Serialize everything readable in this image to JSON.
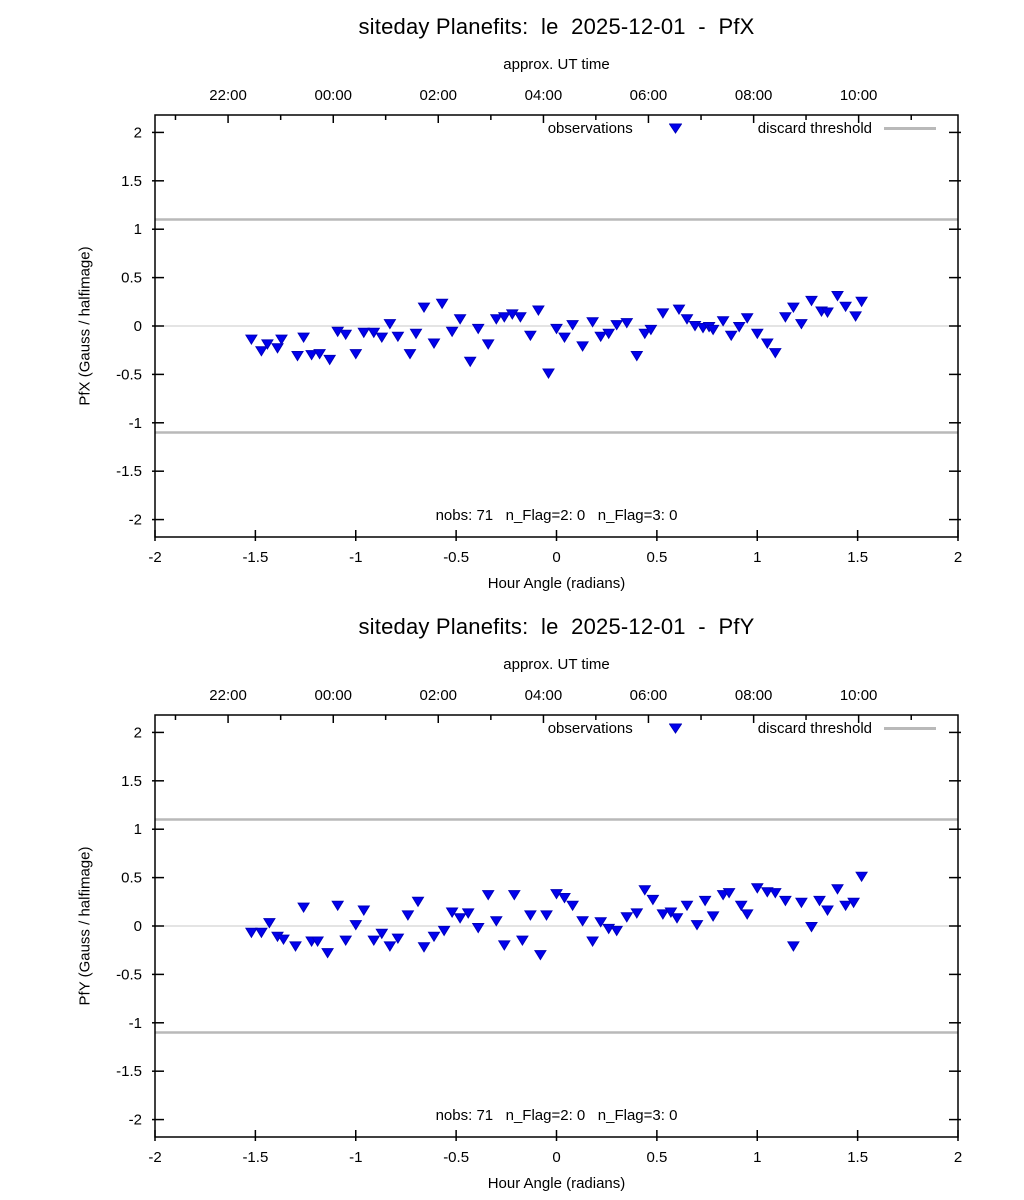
{
  "colors": {
    "background": "#ffffff",
    "text": "#000000",
    "axis": "#000000",
    "observation_marker": "#0000ee",
    "observation_marker_edge": "#0000bb",
    "threshold_line": "#b9b9b9",
    "zero_line": "#c8c8c8"
  },
  "chart_data": [
    {
      "type": "scatter",
      "title": "siteday Planefits:  le  2025-12-01  -  PfX",
      "x2label": "approx. UT time",
      "xlabel": "Hour Angle (radians)",
      "ylabel": "PfX (Gauss / halfimage)",
      "xlim": [
        -2,
        2
      ],
      "ylim": [
        -2.18,
        2.18
      ],
      "grid": false,
      "legend_position": "top-right-horizontal",
      "x_ticks": {
        "values": [
          -2,
          -1.5,
          -1,
          -0.5,
          0,
          0.5,
          1,
          1.5,
          2
        ],
        "labels": [
          "-2",
          "-1.5",
          "-1",
          "-0.5",
          "0",
          "0.5",
          "1",
          "1.5",
          "2"
        ]
      },
      "y_ticks": {
        "values": [
          2,
          1.5,
          1,
          0.5,
          0,
          -0.5,
          -1,
          -1.5,
          -2
        ],
        "labels": [
          "2",
          "1.5",
          "1",
          "0.5",
          "0",
          "-0.5",
          "-1",
          "-1.5",
          "-2"
        ]
      },
      "top_axis": {
        "labels": [
          "22:00",
          "00:00",
          "02:00",
          "04:00",
          "06:00",
          "08:00",
          "10:00"
        ],
        "label_positions_rad": [
          -1.636,
          -1.112,
          -0.589,
          -0.065,
          0.458,
          0.982,
          1.505
        ],
        "minor_positions_rad": [
          -1.898,
          -1.374,
          -0.851,
          -0.327,
          0.196,
          0.72,
          1.243,
          1.767
        ]
      },
      "threshold": 1.1,
      "zero_line": 0,
      "annotation": "nobs: 71   n_Flag=2: 0   n_Flag=3: 0",
      "stats": {
        "nobs": 71,
        "n_flag_2": 0,
        "n_flag_3": 0
      },
      "legend": [
        {
          "label": "observations",
          "marker": "triangle-down"
        },
        {
          "label": "discard threshold",
          "marker": "line"
        }
      ],
      "series": [
        {
          "name": "observations",
          "points": [
            [
              -1.52,
              -0.13
            ],
            [
              -1.47,
              -0.25
            ],
            [
              -1.44,
              -0.18
            ],
            [
              -1.39,
              -0.22
            ],
            [
              -1.37,
              -0.13
            ],
            [
              -1.29,
              -0.3
            ],
            [
              -1.26,
              -0.11
            ],
            [
              -1.22,
              -0.29
            ],
            [
              -1.18,
              -0.28
            ],
            [
              -1.13,
              -0.34
            ],
            [
              -1.09,
              -0.05
            ],
            [
              -1.05,
              -0.08
            ],
            [
              -1.0,
              -0.28
            ],
            [
              -0.96,
              -0.06
            ],
            [
              -0.91,
              -0.06
            ],
            [
              -0.87,
              -0.11
            ],
            [
              -0.83,
              0.03
            ],
            [
              -0.79,
              -0.1
            ],
            [
              -0.73,
              -0.28
            ],
            [
              -0.7,
              -0.07
            ],
            [
              -0.66,
              0.2
            ],
            [
              -0.61,
              -0.17
            ],
            [
              -0.57,
              0.24
            ],
            [
              -0.52,
              -0.05
            ],
            [
              -0.48,
              0.08
            ],
            [
              -0.43,
              -0.36
            ],
            [
              -0.39,
              -0.02
            ],
            [
              -0.34,
              -0.18
            ],
            [
              -0.3,
              0.08
            ],
            [
              -0.26,
              0.1
            ],
            [
              -0.22,
              0.13
            ],
            [
              -0.18,
              0.1
            ],
            [
              -0.13,
              -0.09
            ],
            [
              -0.09,
              0.17
            ],
            [
              -0.04,
              -0.48
            ],
            [
              0.0,
              -0.02
            ],
            [
              0.04,
              -0.11
            ],
            [
              0.08,
              0.02
            ],
            [
              0.13,
              -0.2
            ],
            [
              0.18,
              0.05
            ],
            [
              0.22,
              -0.1
            ],
            [
              0.26,
              -0.07
            ],
            [
              0.3,
              0.02
            ],
            [
              0.35,
              0.04
            ],
            [
              0.4,
              -0.3
            ],
            [
              0.44,
              -0.07
            ],
            [
              0.47,
              -0.03
            ],
            [
              0.53,
              0.14
            ],
            [
              0.61,
              0.18
            ],
            [
              0.65,
              0.08
            ],
            [
              0.69,
              0.01
            ],
            [
              0.73,
              -0.01
            ],
            [
              0.76,
              0.0
            ],
            [
              0.78,
              -0.03
            ],
            [
              0.83,
              0.06
            ],
            [
              0.87,
              -0.09
            ],
            [
              0.91,
              0.0
            ],
            [
              0.95,
              0.09
            ],
            [
              1.0,
              -0.07
            ],
            [
              1.05,
              -0.17
            ],
            [
              1.09,
              -0.27
            ],
            [
              1.14,
              0.1
            ],
            [
              1.18,
              0.2
            ],
            [
              1.22,
              0.03
            ],
            [
              1.27,
              0.27
            ],
            [
              1.32,
              0.16
            ],
            [
              1.35,
              0.15
            ],
            [
              1.4,
              0.32
            ],
            [
              1.44,
              0.21
            ],
            [
              1.49,
              0.11
            ],
            [
              1.52,
              0.26
            ]
          ]
        }
      ]
    },
    {
      "type": "scatter",
      "title": "siteday Planefits:  le  2025-12-01  -  PfY",
      "x2label": "approx. UT time",
      "xlabel": "Hour Angle (radians)",
      "ylabel": "PfY (Gauss / halfimage)",
      "xlim": [
        -2,
        2
      ],
      "ylim": [
        -2.18,
        2.18
      ],
      "grid": false,
      "legend_position": "top-right-horizontal",
      "x_ticks": {
        "values": [
          -2,
          -1.5,
          -1,
          -0.5,
          0,
          0.5,
          1,
          1.5,
          2
        ],
        "labels": [
          "-2",
          "-1.5",
          "-1",
          "-0.5",
          "0",
          "0.5",
          "1",
          "1.5",
          "2"
        ]
      },
      "y_ticks": {
        "values": [
          2,
          1.5,
          1,
          0.5,
          0,
          -0.5,
          -1,
          -1.5,
          -2
        ],
        "labels": [
          "2",
          "1.5",
          "1",
          "0.5",
          "0",
          "-0.5",
          "-1",
          "-1.5",
          "-2"
        ]
      },
      "top_axis": {
        "labels": [
          "22:00",
          "00:00",
          "02:00",
          "04:00",
          "06:00",
          "08:00",
          "10:00"
        ],
        "label_positions_rad": [
          -1.636,
          -1.112,
          -0.589,
          -0.065,
          0.458,
          0.982,
          1.505
        ],
        "minor_positions_rad": [
          -1.898,
          -1.374,
          -0.851,
          -0.327,
          0.196,
          0.72,
          1.243,
          1.767
        ]
      },
      "threshold": 1.1,
      "zero_line": 0,
      "annotation": "nobs: 71   n_Flag=2: 0   n_Flag=3: 0",
      "stats": {
        "nobs": 71,
        "n_flag_2": 0,
        "n_flag_3": 0
      },
      "legend": [
        {
          "label": "observations",
          "marker": "triangle-down"
        },
        {
          "label": "discard threshold",
          "marker": "line"
        }
      ],
      "series": [
        {
          "name": "observations",
          "points": [
            [
              -1.52,
              -0.06
            ],
            [
              -1.47,
              -0.06
            ],
            [
              -1.43,
              0.04
            ],
            [
              -1.39,
              -0.1
            ],
            [
              -1.36,
              -0.13
            ],
            [
              -1.3,
              -0.2
            ],
            [
              -1.26,
              0.2
            ],
            [
              -1.22,
              -0.15
            ],
            [
              -1.19,
              -0.15
            ],
            [
              -1.14,
              -0.27
            ],
            [
              -1.09,
              0.22
            ],
            [
              -1.05,
              -0.14
            ],
            [
              -1.0,
              0.02
            ],
            [
              -0.96,
              0.17
            ],
            [
              -0.91,
              -0.14
            ],
            [
              -0.87,
              -0.07
            ],
            [
              -0.83,
              -0.2
            ],
            [
              -0.79,
              -0.12
            ],
            [
              -0.74,
              0.12
            ],
            [
              -0.69,
              0.26
            ],
            [
              -0.66,
              -0.21
            ],
            [
              -0.61,
              -0.1
            ],
            [
              -0.56,
              -0.04
            ],
            [
              -0.52,
              0.15
            ],
            [
              -0.48,
              0.09
            ],
            [
              -0.44,
              0.14
            ],
            [
              -0.39,
              -0.01
            ],
            [
              -0.34,
              0.33
            ],
            [
              -0.3,
              0.06
            ],
            [
              -0.26,
              -0.19
            ],
            [
              -0.21,
              0.33
            ],
            [
              -0.17,
              -0.14
            ],
            [
              -0.13,
              0.12
            ],
            [
              -0.08,
              -0.29
            ],
            [
              -0.05,
              0.12
            ],
            [
              0.0,
              0.34
            ],
            [
              0.04,
              0.3
            ],
            [
              0.08,
              0.22
            ],
            [
              0.13,
              0.06
            ],
            [
              0.18,
              -0.15
            ],
            [
              0.22,
              0.05
            ],
            [
              0.26,
              -0.02
            ],
            [
              0.3,
              -0.04
            ],
            [
              0.35,
              0.1
            ],
            [
              0.4,
              0.14
            ],
            [
              0.44,
              0.38
            ],
            [
              0.48,
              0.28
            ],
            [
              0.53,
              0.13
            ],
            [
              0.57,
              0.15
            ],
            [
              0.6,
              0.09
            ],
            [
              0.65,
              0.22
            ],
            [
              0.7,
              0.02
            ],
            [
              0.74,
              0.27
            ],
            [
              0.78,
              0.11
            ],
            [
              0.83,
              0.33
            ],
            [
              0.86,
              0.35
            ],
            [
              0.92,
              0.22
            ],
            [
              0.95,
              0.13
            ],
            [
              1.0,
              0.4
            ],
            [
              1.05,
              0.36
            ],
            [
              1.09,
              0.35
            ],
            [
              1.14,
              0.27
            ],
            [
              1.18,
              -0.2
            ],
            [
              1.22,
              0.25
            ],
            [
              1.27,
              0.0
            ],
            [
              1.31,
              0.27
            ],
            [
              1.35,
              0.17
            ],
            [
              1.4,
              0.39
            ],
            [
              1.44,
              0.22
            ],
            [
              1.48,
              0.25
            ],
            [
              1.52,
              0.52
            ]
          ]
        }
      ]
    }
  ]
}
